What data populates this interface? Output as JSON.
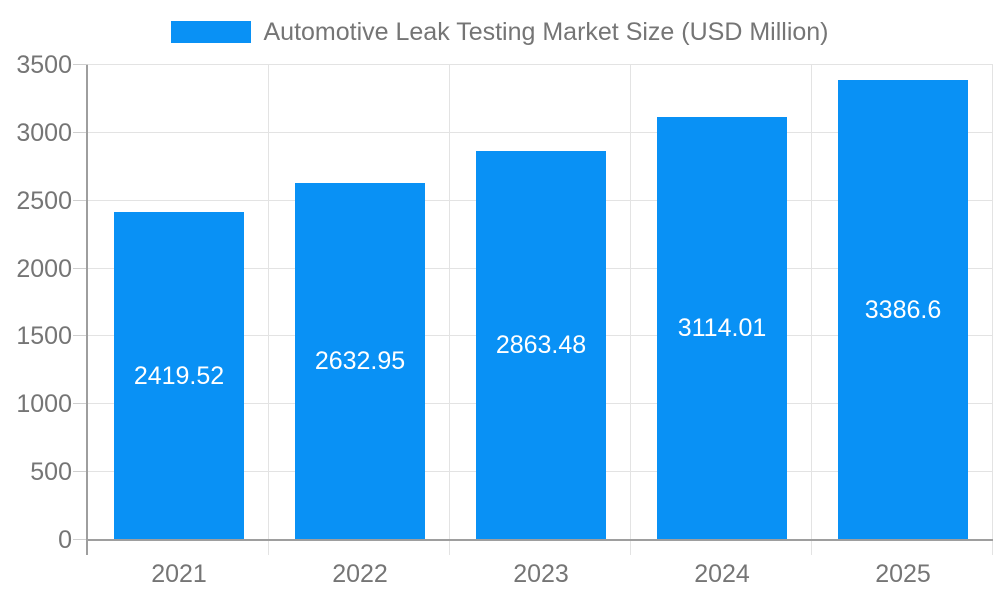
{
  "chart_data": {
    "type": "bar",
    "title": "Automotive Leak Testing Market Size (USD Million)",
    "series_name": "Automotive Leak Testing Market Size (USD Million)",
    "categories": [
      "2021",
      "2022",
      "2023",
      "2024",
      "2025"
    ],
    "values": [
      2419.52,
      2632.95,
      2863.48,
      3114.01,
      3386.6
    ],
    "value_labels": [
      "2419.52",
      "2632.95",
      "2863.48",
      "3114.01",
      "3386.6"
    ],
    "xlabel": "",
    "ylabel": "",
    "ylim": [
      0,
      3500
    ],
    "yticks": [
      "0",
      "500",
      "1000",
      "1500",
      "2000",
      "2500",
      "3000",
      "3500"
    ],
    "ytick_step": 500,
    "grid": true,
    "legend_position": "top-center",
    "value_label_position": "inside-center",
    "colors": {
      "bar": "#0991F5",
      "bar_label": "#FFFFFF",
      "axis_text": "#757575",
      "legend_text": "#757575",
      "gridline": "#E3E3E3",
      "axis_line": "#9E9E9E",
      "tick": "#CFCFCF",
      "background": "#FFFFFF"
    }
  }
}
